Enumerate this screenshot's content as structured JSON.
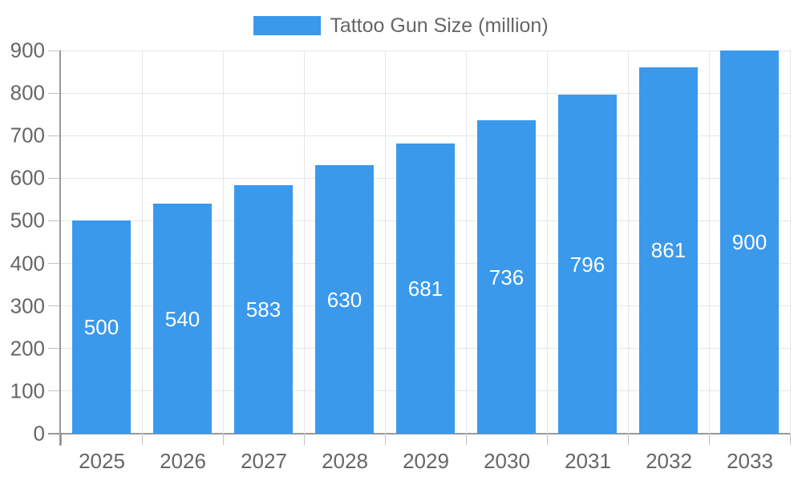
{
  "chart_data": {
    "type": "bar",
    "title": "",
    "categories": [
      "2025",
      "2026",
      "2027",
      "2028",
      "2029",
      "2030",
      "2031",
      "2032",
      "2033"
    ],
    "series": [
      {
        "name": "Tattoo Gun Size (million)",
        "values": [
          500,
          540,
          583,
          630,
          681,
          736,
          796,
          861,
          900
        ]
      }
    ],
    "xlabel": "",
    "ylabel": "",
    "ylim": [
      0,
      900
    ],
    "y_ticks": [
      0,
      100,
      200,
      300,
      400,
      500,
      600,
      700,
      800,
      900
    ],
    "grid": true,
    "legend_position": "top",
    "value_labels_inside_bars": true,
    "colors": {
      "bar": "#3b99ec",
      "grid_line": "#e6e6e6",
      "axis_line": "#999999",
      "tick_mark": "#c2c2c2",
      "tick_text": "#666666",
      "value_label_text": "#ffffff",
      "background": "#ffffff"
    }
  }
}
